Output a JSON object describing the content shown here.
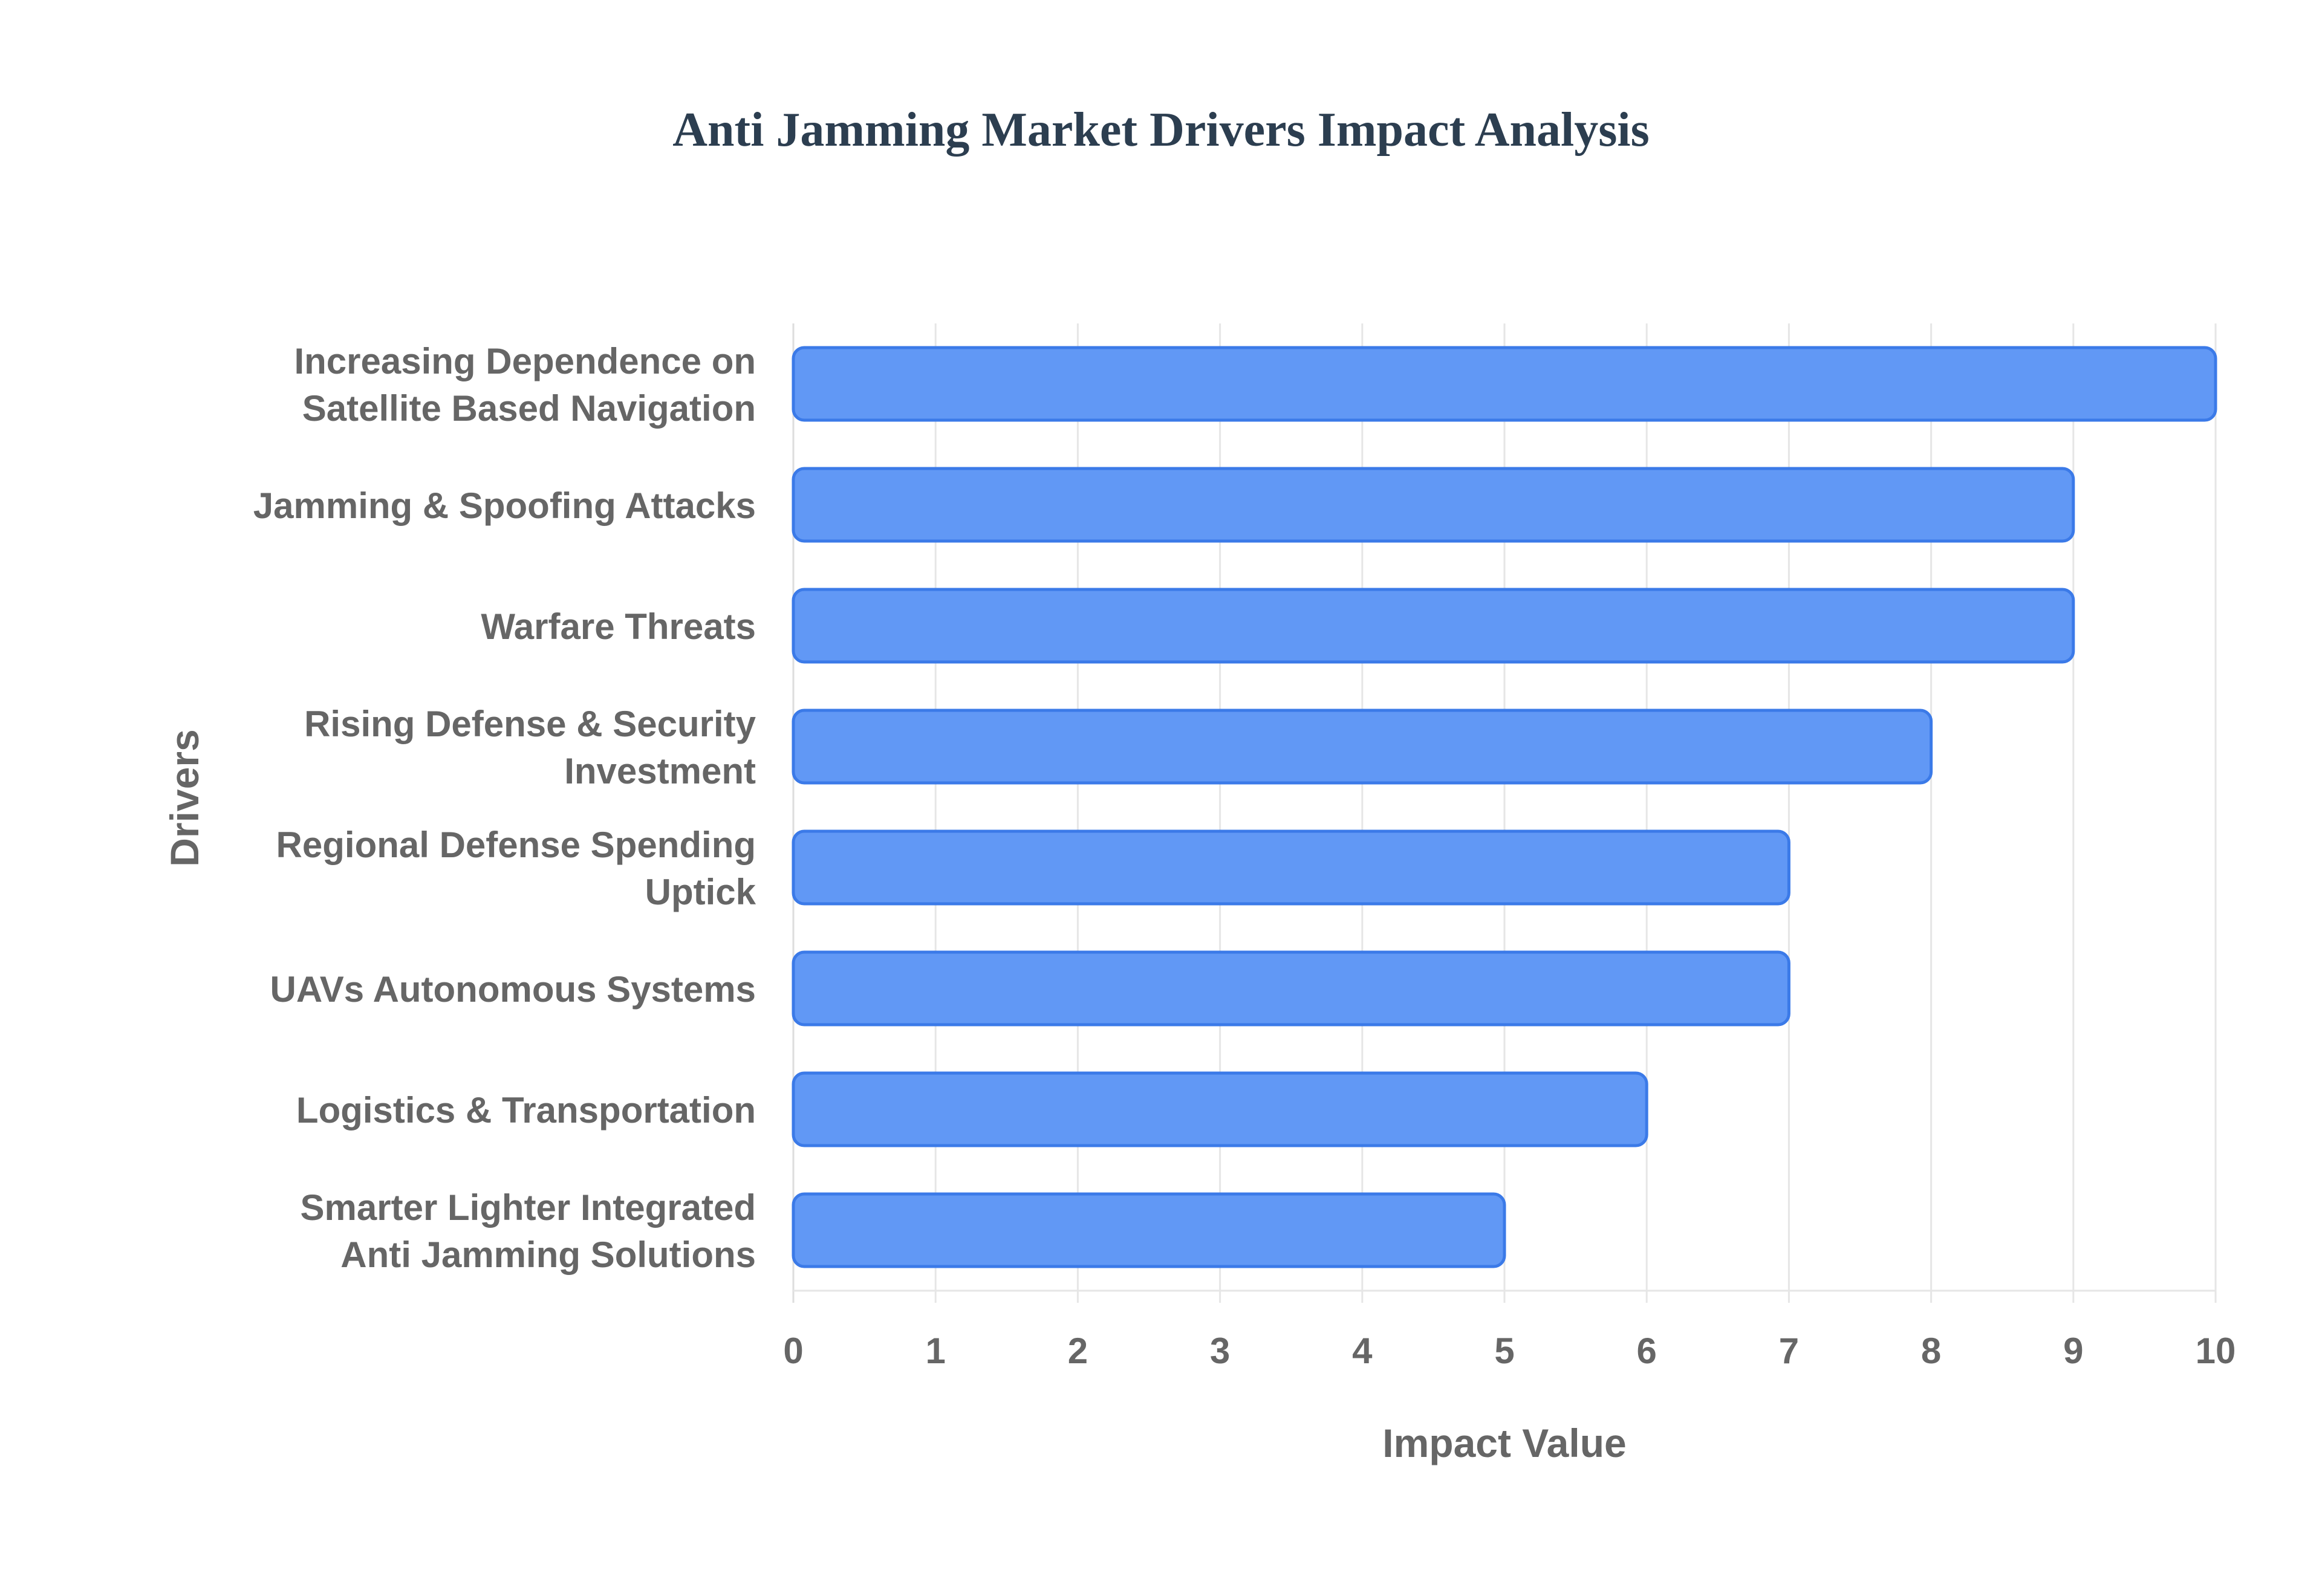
{
  "chart_data": {
    "type": "bar",
    "orientation": "horizontal",
    "title": "Anti Jamming Market Drivers Impact Analysis",
    "xlabel": "Impact Value",
    "ylabel": "Drivers",
    "xlim": [
      0,
      10
    ],
    "xticks": [
      "0",
      "1",
      "2",
      "3",
      "4",
      "5",
      "6",
      "7",
      "8",
      "9",
      "10"
    ],
    "grid": true,
    "categories": [
      [
        "Increasing Dependence on",
        "Satellite Based Navigation"
      ],
      [
        "Jamming & Spoofing Attacks"
      ],
      [
        "Warfare Threats"
      ],
      [
        "Rising Defense & Security",
        "Investment"
      ],
      [
        "Regional Defense Spending",
        "Uptick"
      ],
      [
        "UAVs Autonomous Systems"
      ],
      [
        "Logistics & Transportation"
      ],
      [
        "Smarter Lighter Integrated",
        "Anti Jamming Solutions"
      ]
    ],
    "values": [
      10,
      9,
      9,
      8,
      7,
      7,
      6,
      5
    ],
    "colors": {
      "bar_fill": "#6198f5",
      "bar_stroke": "#3b7ae8",
      "grid": "#e6e6e6",
      "axis": "#dddddd",
      "text": "#666666",
      "title": "#2c3e50"
    }
  }
}
